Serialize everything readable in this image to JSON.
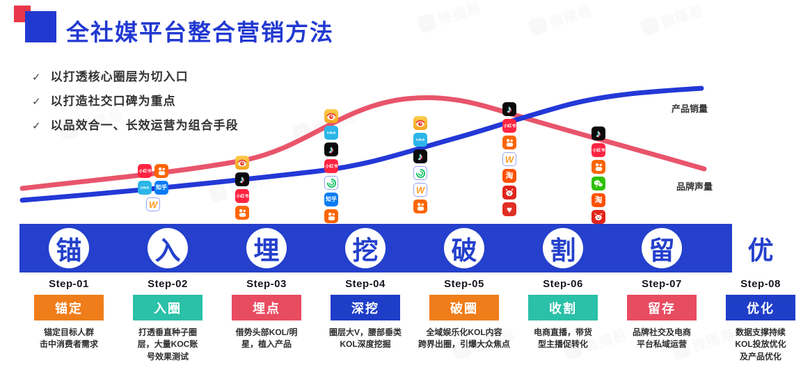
{
  "title": "全社媒平台整合营销方法",
  "check_icon": "✓",
  "bullets": [
    "以打透核心圈层为切入口",
    "以打造社交口碑为重点",
    "以品效合一、长效运营为组合手段"
  ],
  "curves": {
    "blue_label": "产品销量",
    "red_label": "品牌声量",
    "blue_color": "#2338D6",
    "red_color": "#E8556B"
  },
  "colors": {
    "title_blue": "#2239D1",
    "banner_blue": "#2440CC",
    "logo_red": "#E8374A",
    "btn_orange": "#EF7D1A",
    "btn_teal": "#2BC0A8",
    "btn_pink": "#E84C61",
    "btn_blue": "#1F3EC8"
  },
  "platform_names": {
    "xiaohongshu": "小红书",
    "kuaishou": "快手",
    "bilibili": "bilibili",
    "zhihu": "知乎",
    "weibo": "微博",
    "douyin": "抖音",
    "shipinhao": "视频号",
    "weishi": "微视",
    "wechat": "微信",
    "taobao": "淘宝",
    "jd": "京东",
    "pinduoduo": "拼多多"
  },
  "steps": [
    {
      "step": "Step-01",
      "char": "锚",
      "button": "锚定",
      "button_color": "#EF7D1A",
      "desc": "锚定目标人群\n击中消费者需求",
      "platform_rows": []
    },
    {
      "step": "Step-02",
      "char": "入",
      "button": "入圈",
      "button_color": "#2BC0A8",
      "desc": "打透垂直种子圈\n层，大量KOC账\n号效果测试",
      "platform_rows": [
        [
          "xiaohongshu",
          "kuaishou"
        ],
        [
          "bilibili",
          "zhihu"
        ],
        [
          "weishi"
        ]
      ]
    },
    {
      "step": "Step-03",
      "char": "埋",
      "button": "埋点",
      "button_color": "#E84C61",
      "desc": "借势头部KOL/明\n星，植入产品",
      "platform_rows": [
        [
          "weibo"
        ],
        [
          "douyin"
        ],
        [
          "xiaohongshu"
        ],
        [
          "kuaishou"
        ]
      ]
    },
    {
      "step": "Step-04",
      "char": "挖",
      "button": "深挖",
      "button_color": "#1F3EC8",
      "desc": "圈层大V，腰部垂类\nKOL深度挖掘",
      "platform_rows": [
        [
          "weibo"
        ],
        [
          "bilibili"
        ],
        [
          "douyin"
        ],
        [
          "xiaohongshu"
        ],
        [
          "shipinhao"
        ],
        [
          "zhihu"
        ],
        [
          "kuaishou"
        ]
      ]
    },
    {
      "step": "Step-05",
      "char": "破",
      "button": "破圈",
      "button_color": "#EF7D1A",
      "desc": "全域娱乐化KOL内容\n跨界出圈，引爆大众焦点",
      "platform_rows": [
        [
          "weibo"
        ],
        [
          "bilibili"
        ],
        [
          "douyin"
        ],
        [
          "shipinhao"
        ],
        [
          "weishi"
        ],
        [
          "kuaishou"
        ]
      ]
    },
    {
      "step": "Step-06",
      "char": "割",
      "button": "收割",
      "button_color": "#2BC0A8",
      "desc": "电商直播，带货\n型主播促转化",
      "platform_rows": [
        [
          "douyin"
        ],
        [
          "xiaohongshu"
        ],
        [
          "kuaishou"
        ],
        [
          "weishi"
        ],
        [
          "taobao"
        ],
        [
          "jd"
        ],
        [
          "pinduoduo"
        ]
      ]
    },
    {
      "step": "Step-07",
      "char": "留",
      "button": "留存",
      "button_color": "#E84C61",
      "desc": "品牌社交及电商\n平台私域运营",
      "platform_rows": [
        [
          "douyin"
        ],
        [
          "xiaohongshu"
        ],
        [
          "kuaishou"
        ],
        [
          "wechat"
        ],
        [
          "taobao"
        ],
        [
          "jd"
        ]
      ]
    },
    {
      "step": "Step-08",
      "char": "优",
      "button": "优化",
      "button_color": "#1F3EC8",
      "desc": "数据支撑持续\nKOL投放优化\n及产品优化",
      "platform_rows": []
    }
  ],
  "watermark_text": "微播易"
}
